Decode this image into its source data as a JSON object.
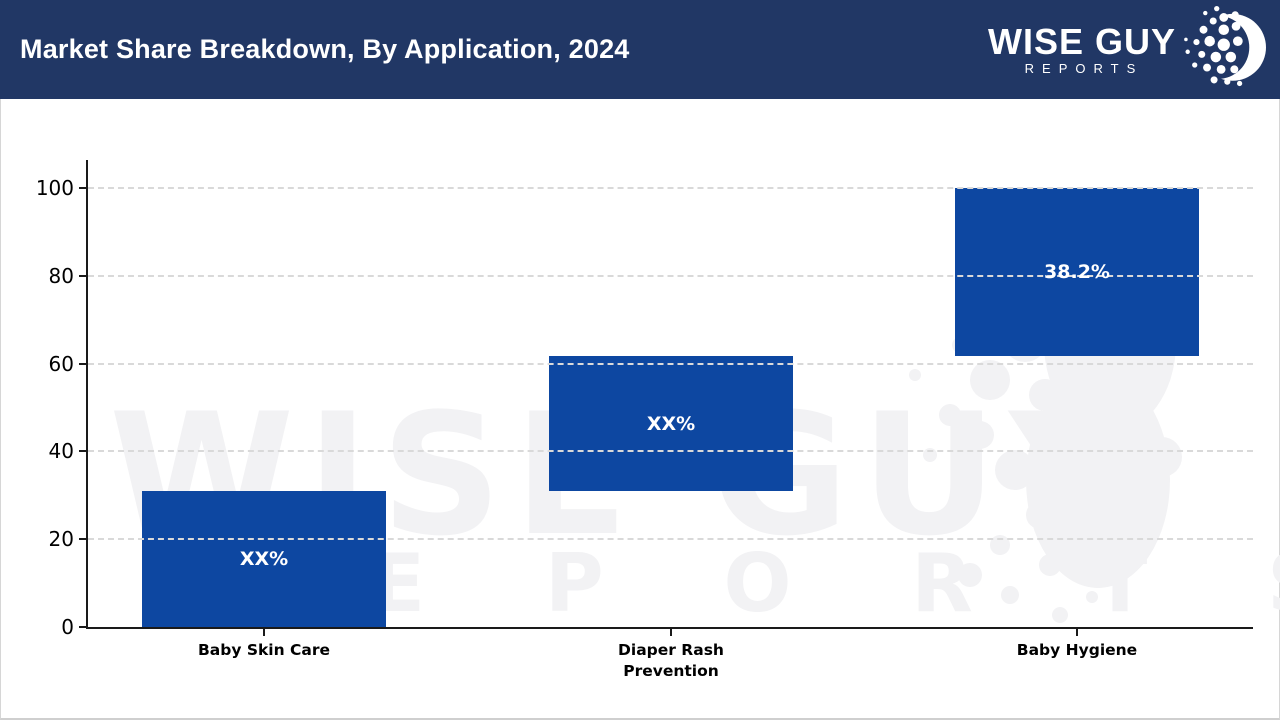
{
  "header": {
    "title": "Market Share Breakdown, By Application, 2024",
    "brand": {
      "line1": "WISE GUY",
      "line2": "REPORTS"
    }
  },
  "watermark": {
    "line1": "WISE GUY",
    "line2": "R E P O R T S"
  },
  "colors": {
    "header_bg": "#213765",
    "bar": "#0d47a1",
    "bar_label": "#ffffff",
    "axis": "#1a1a1a",
    "grid": "#d9d9d9",
    "watermark": "#f2f2f4"
  },
  "chart_data": {
    "type": "bar",
    "subtype": "waterfall",
    "title": "Market Share Breakdown, By Application, 2024",
    "categories": [
      "Baby Skin Care",
      "Diaper Rash\nPrevention",
      "Baby Hygiene"
    ],
    "segments": [
      {
        "category": "Baby Skin Care",
        "start": 0,
        "end": 30.9,
        "label": "XX%"
      },
      {
        "category": "Diaper Rash Prevention",
        "start": 30.9,
        "end": 61.8,
        "label": "XX%"
      },
      {
        "category": "Baby Hygiene",
        "start": 61.8,
        "end": 100,
        "label": "38.2%"
      }
    ],
    "yticks": [
      0,
      20,
      40,
      60,
      80,
      100
    ],
    "ylim": [
      0,
      100
    ],
    "xlabel": "",
    "ylabel": "",
    "grid": "dashed-horizontal",
    "legend": "none",
    "bar_color": "#0d47a1",
    "value_label_color": "#ffffff"
  }
}
